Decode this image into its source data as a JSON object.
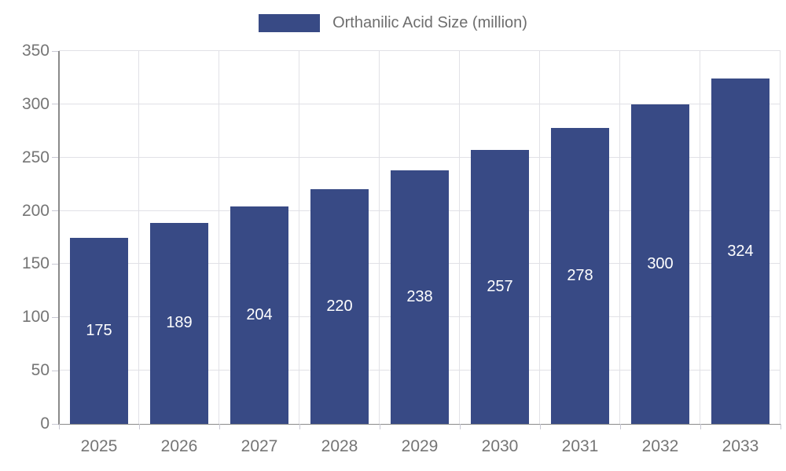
{
  "chart_data": {
    "type": "bar",
    "title": "Orthanilic Acid Size (million)",
    "categories": [
      "2025",
      "2026",
      "2027",
      "2028",
      "2029",
      "2030",
      "2031",
      "2032",
      "2033"
    ],
    "values": [
      175,
      189,
      204,
      220,
      238,
      257,
      278,
      300,
      324
    ],
    "series": [
      {
        "name": "Orthanilic Acid Size (million)",
        "values": [
          175,
          189,
          204,
          220,
          238,
          257,
          278,
          300,
          324
        ]
      }
    ],
    "xlabel": "",
    "ylabel": "",
    "ylim": [
      0,
      350
    ],
    "yticks": [
      0,
      50,
      100,
      150,
      200,
      250,
      300,
      350
    ],
    "grid": true,
    "legend_position": "top",
    "colors": {
      "bar": "#384A85",
      "value_label": "#FFFFFF",
      "axis_text": "#757575",
      "legend_text": "#6E6E6E",
      "grid_line": "#E1E1E6",
      "axis_line": "#8A8A8A",
      "tick": "#C9C9D4",
      "background": "#FFFFFF"
    }
  }
}
